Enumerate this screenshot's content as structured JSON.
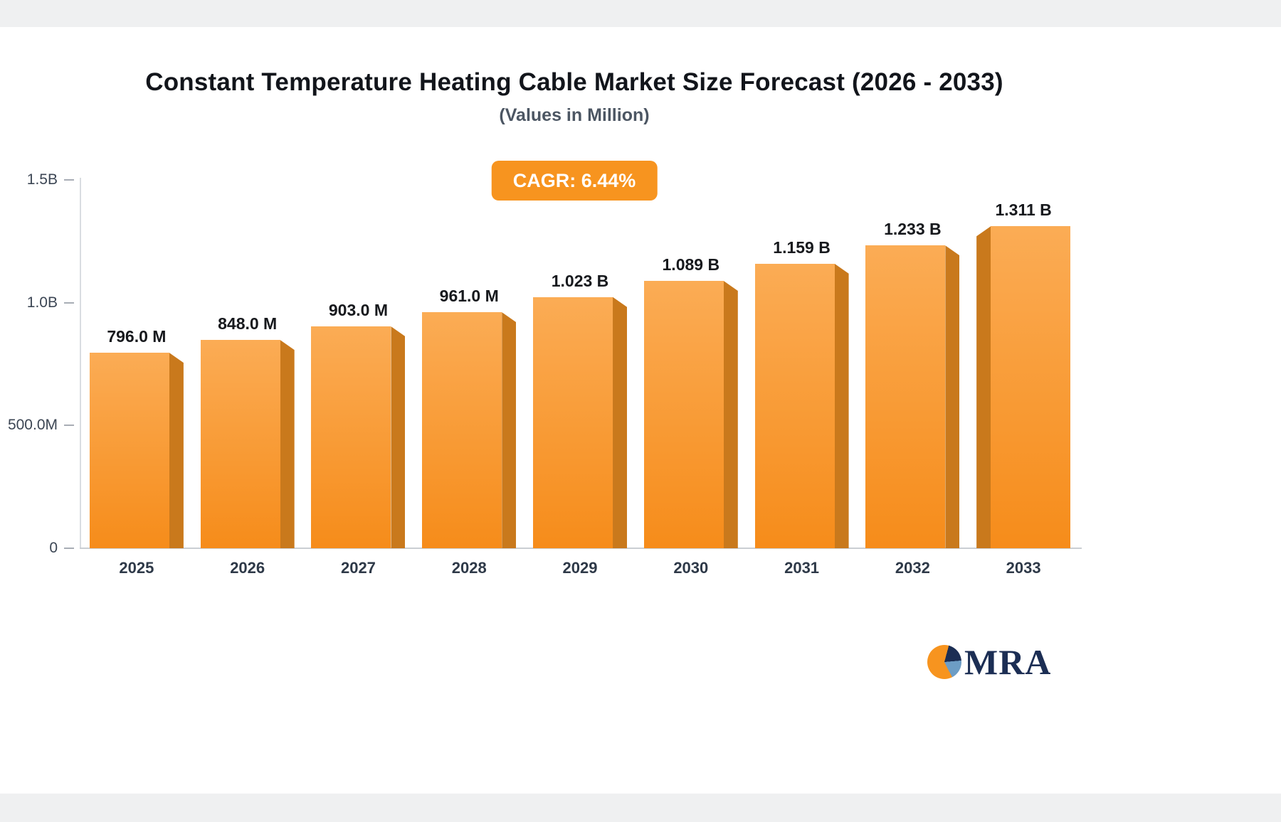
{
  "header": {
    "title": "Constant Temperature Heating Cable Market Size Forecast (2026 - 2033)",
    "subtitle": "(Values in Million)"
  },
  "badge": {
    "label": "CAGR: 6.44%",
    "color": "#F7941F"
  },
  "chart_data": {
    "type": "bar",
    "title": "Constant Temperature Heating Cable Market Size Forecast (2026 - 2033)",
    "subtitle": "(Values in Million)",
    "unit": "Million USD",
    "categories": [
      "2025",
      "2026",
      "2027",
      "2028",
      "2029",
      "2030",
      "2031",
      "2032",
      "2033"
    ],
    "values_millions": [
      796,
      848,
      903,
      961,
      1023,
      1089,
      1159,
      1233,
      1311
    ],
    "value_labels": [
      "796.0 M",
      "848.0 M",
      "903.0 M",
      "961.0 M",
      "1.023 B",
      "1.089 B",
      "1.159 B",
      "1.233 B",
      "1.311 B"
    ],
    "ylim": [
      0,
      1500
    ],
    "y_ticks": [
      {
        "value": 1500,
        "label": "1.5B"
      },
      {
        "value": 1000,
        "label": "1.0B"
      },
      {
        "value": 500,
        "label": "500.0M"
      },
      {
        "value": 0,
        "label": "0"
      }
    ],
    "annotations": [
      "CAGR: 6.44%"
    ],
    "grid": false,
    "legend": false,
    "bar_face_top_color": "#FBAC55",
    "bar_face_bottom_color": "#F68C1A",
    "bar_side_color": "#C9791C"
  },
  "branding": {
    "logo_text": "MRA",
    "logo_navy_color": "#1C2E54",
    "logo_blue_color": "#6D9DC5",
    "logo_orange_color": "#F7941F"
  }
}
